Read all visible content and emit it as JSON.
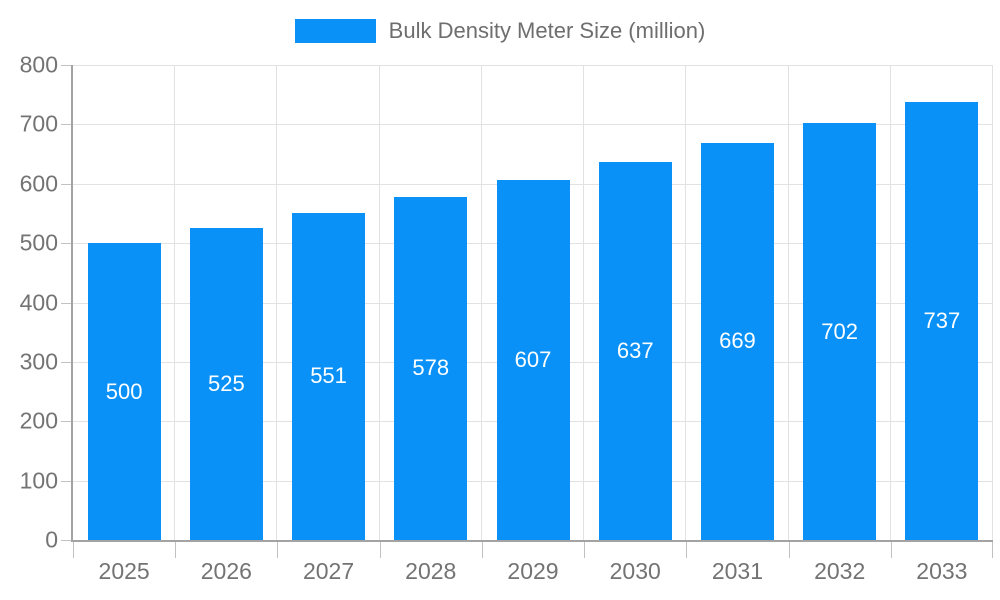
{
  "legend": {
    "label": "Bulk Density Meter Size (million)",
    "swatch_color": "#0991f8"
  },
  "chart_data": {
    "type": "bar",
    "title": "",
    "series_name": "Bulk Density Meter Size (million)",
    "categories": [
      "2025",
      "2026",
      "2027",
      "2028",
      "2029",
      "2030",
      "2031",
      "2032",
      "2033"
    ],
    "values": [
      500,
      525,
      551,
      578,
      607,
      637,
      669,
      702,
      737
    ],
    "xlabel": "",
    "ylabel": "",
    "ylim": [
      0,
      800
    ],
    "yticks": [
      0,
      100,
      200,
      300,
      400,
      500,
      600,
      700,
      800
    ],
    "grid": true,
    "legend_position": "top-center",
    "colors": {
      "bar": "#0991f8",
      "value_label": "#ffffff",
      "axis_text": "#737373",
      "legend_text": "#6e6e6e",
      "axis_line": "#a3a3a3",
      "grid_line": "#e2e2e2",
      "tick_line": "#c2c2c2",
      "background": "#ffffff"
    }
  }
}
